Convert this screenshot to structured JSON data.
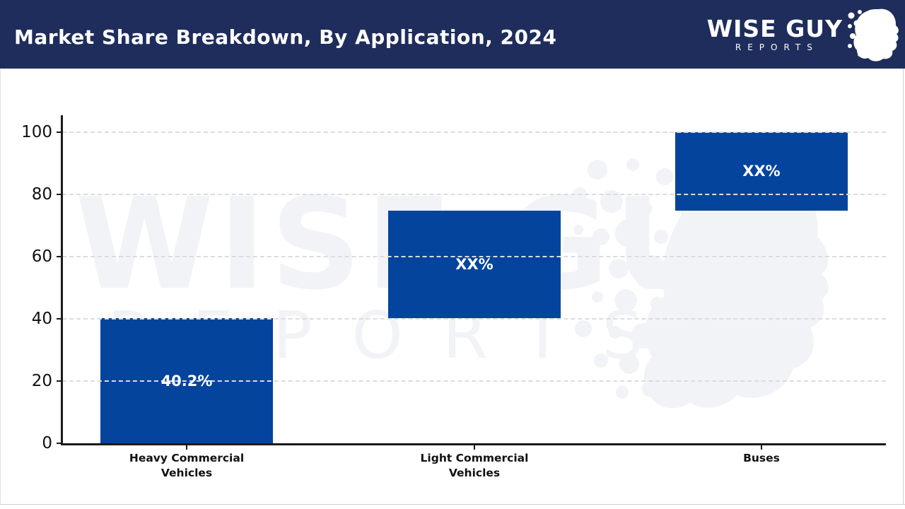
{
  "header": {
    "title": "Market Share Breakdown, By Application, 2024",
    "logo": {
      "line1": "WISE GUY",
      "line2": "REPORTS"
    }
  },
  "watermark": {
    "line1": "WISE GUY",
    "line2": "REPORTS"
  },
  "colors": {
    "header_bg": "#1e2d5b",
    "bar": "#04449d",
    "bar_label": "#ffffff",
    "gridline": "#dcdcdc",
    "axis": "#1a1a1a",
    "watermark": "#f2f3f6"
  },
  "chart_data": {
    "type": "bar",
    "subtype": "stacked-percentage-waterfall",
    "title": "Market Share Breakdown, By Application, 2024",
    "categories": [
      "Heavy Commercial Vehicles",
      "Light Commercial Vehicles",
      "Buses"
    ],
    "category_label_lines": [
      [
        "Heavy Commercial",
        "Vehicles"
      ],
      [
        "Light Commercial",
        "Vehicles"
      ],
      [
        "Buses"
      ]
    ],
    "segments": [
      {
        "category": "Heavy Commercial Vehicles",
        "start": 0,
        "end": 40.2,
        "label": "40.2%"
      },
      {
        "category": "Light Commercial Vehicles",
        "start": 40.2,
        "end": 74.8,
        "label": "XX%"
      },
      {
        "category": "Buses",
        "start": 74.8,
        "end": 100,
        "label": "XX%"
      }
    ],
    "ylim": [
      0,
      100
    ],
    "yticks": [
      0,
      20,
      40,
      60,
      80,
      100
    ],
    "grid": "horizontal-dashed",
    "legend": "none",
    "bar_color": "#04449d"
  }
}
